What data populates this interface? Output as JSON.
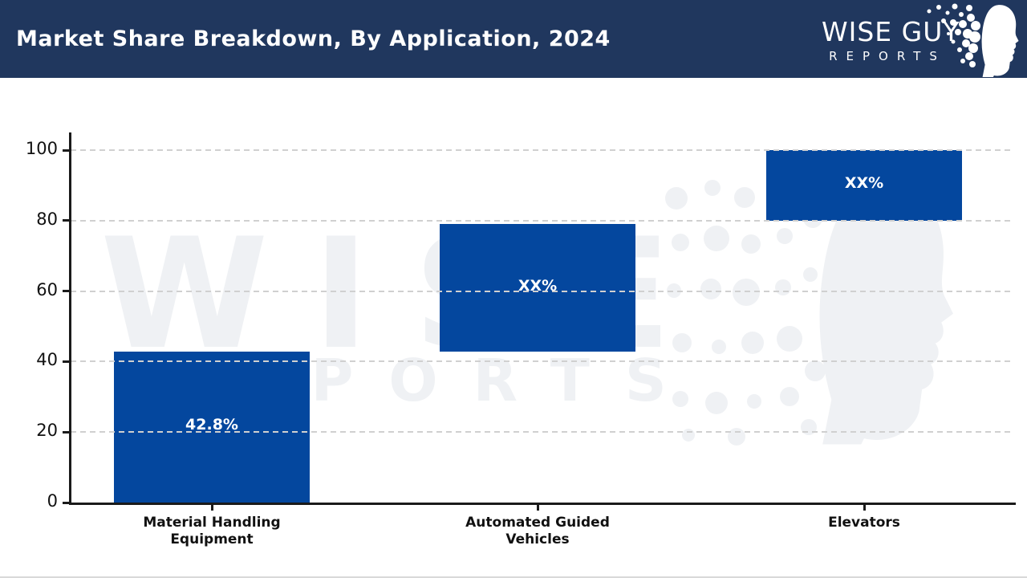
{
  "header": {
    "title": "Market Share Breakdown, By Application, 2024",
    "bg_color": "#20375e",
    "logo": {
      "brand_top": "WISE GUY",
      "brand_bottom": "REPORTS"
    }
  },
  "watermark": {
    "line1": "WISE",
    "line2": "REPORTS"
  },
  "chart_data": {
    "type": "bar",
    "variant": "floating-segment (stacked market-share breakdown)",
    "title": "Market Share Breakdown, By Application, 2024",
    "categories": [
      "Material Handling Equipment",
      "Automated Guided Vehicles",
      "Elevators"
    ],
    "category_label_lines": [
      [
        "Material Handling",
        "Equipment"
      ],
      [
        "Automated Guided",
        "Vehicles"
      ],
      [
        "Elevators"
      ]
    ],
    "segments": [
      {
        "category": "Material Handling Equipment",
        "start": 0,
        "end": 42.8,
        "label": "42.8%"
      },
      {
        "category": "Automated Guided Vehicles",
        "start": 42.8,
        "end": 79,
        "label": "XX%"
      },
      {
        "category": "Elevators",
        "start": 80,
        "end": 100,
        "label": "XX%"
      }
    ],
    "yticks": [
      0,
      20,
      40,
      60,
      80,
      100
    ],
    "ylim": [
      0,
      105
    ],
    "xlabel": "",
    "ylabel": "",
    "grid": "horizontal-dashed",
    "legend": "none",
    "bar_color": "#04479e",
    "value_label_color": "#ffffff"
  }
}
